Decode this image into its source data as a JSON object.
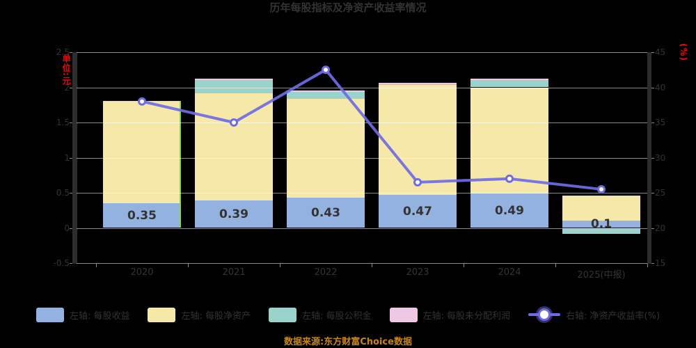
{
  "title": "历年每股指标及净资产收益率情况",
  "footer_source": "数据来源:东方财富Choice数据",
  "left_axis": {
    "unit": "单位:元",
    "ticks": [
      "2.5",
      "2",
      "1.5",
      "1",
      "0.5",
      "0",
      "-0.5"
    ]
  },
  "right_axis": {
    "unit": "(%)",
    "ticks": [
      "45",
      "40",
      "35",
      "30",
      "25",
      "20",
      "15"
    ]
  },
  "colors": {
    "background": "#000000",
    "title_text": "#333333",
    "axis_text": "#333333",
    "unit_text": "#FF0000",
    "grid_line": "rgba(255,255,255,0.55)",
    "spine": "#2D2D2D",
    "value_label": "#333333",
    "footer_text": "#C8860F"
  },
  "chart_data": {
    "type": "bar",
    "title": "历年每股指标及净资产收益率情况",
    "categories": [
      "2020",
      "2021",
      "2022",
      "2023",
      "2024",
      "2025(中报)"
    ],
    "ylim_left": [
      -0.5,
      2.5
    ],
    "ylim_right": [
      15,
      45
    ],
    "grid": true,
    "legend_position": "bottom",
    "series": [
      {
        "key": "eps",
        "name": "左轴: 每股收益",
        "type": "bar",
        "color": "#93B2E0",
        "values": [
          0.35,
          0.39,
          0.43,
          0.47,
          0.49,
          0.1
        ],
        "labels": [
          "0.35",
          "0.39",
          "0.43",
          "0.47",
          "0.49",
          "0.1"
        ]
      },
      {
        "key": "bvps",
        "name": "左轴: 每股净资产",
        "type": "bar",
        "color": "#F6E8A9",
        "values": [
          1.45,
          1.53,
          1.41,
          1.56,
          1.51,
          0.35
        ]
      },
      {
        "key": "reserve",
        "name": "左轴: 每股公积金",
        "type": "bar",
        "color": "#9AD3CC",
        "values": [
          0,
          0.18,
          0.1,
          0.01,
          0.1,
          -0.08
        ]
      },
      {
        "key": "retained",
        "name": "左轴: 每股未分配利润",
        "type": "bar",
        "color": "#EFC9E4",
        "values": [
          0.01,
          0.02,
          0.02,
          0.02,
          0.02,
          0.01
        ]
      },
      {
        "key": "roe",
        "name": "右轴: 净资产收益率(%)",
        "type": "line",
        "color": "#6E6BE8",
        "values": [
          38,
          35,
          42.5,
          26.5,
          27,
          25.5
        ]
      }
    ],
    "accents": {
      "first_bar_right_edge": "#86D64A"
    }
  }
}
